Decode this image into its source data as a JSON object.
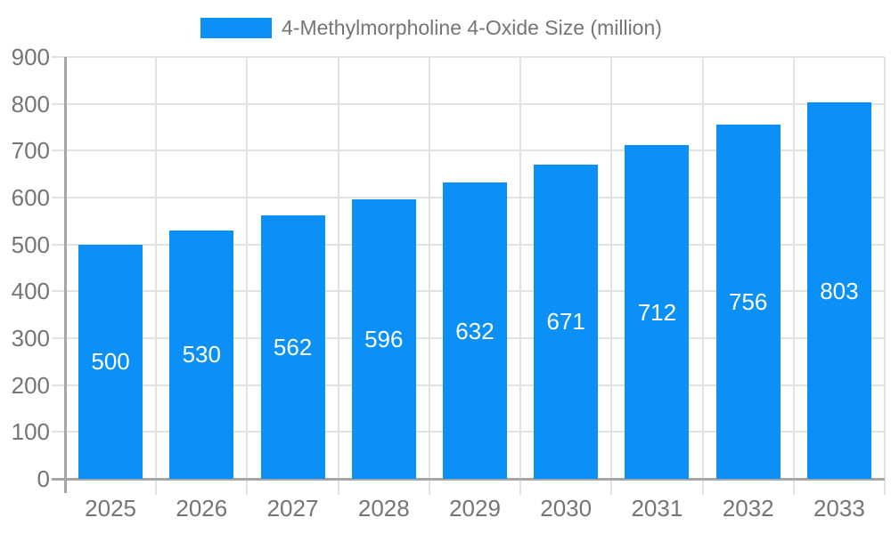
{
  "chart_data": {
    "type": "bar",
    "title": "4-Methylmorpholine 4-Oxide Size (million)",
    "categories": [
      "2025",
      "2026",
      "2027",
      "2028",
      "2029",
      "2030",
      "2031",
      "2032",
      "2033"
    ],
    "values": [
      500,
      530,
      562,
      596,
      632,
      671,
      712,
      756,
      803
    ],
    "xlabel": "",
    "ylabel": "",
    "ylim": [
      0,
      900
    ],
    "ytick_step": 100,
    "ytick_labels": [
      "0",
      "100",
      "200",
      "300",
      "400",
      "500",
      "600",
      "700",
      "800",
      "900"
    ],
    "grid": true,
    "legend_position": "top-center",
    "bar_color": "#0b90f7",
    "value_label_color": "#ffffff",
    "axis_text_color": "#757575",
    "grid_color": "#e2e2e2",
    "axis_line_color": "#a6a6a6"
  }
}
